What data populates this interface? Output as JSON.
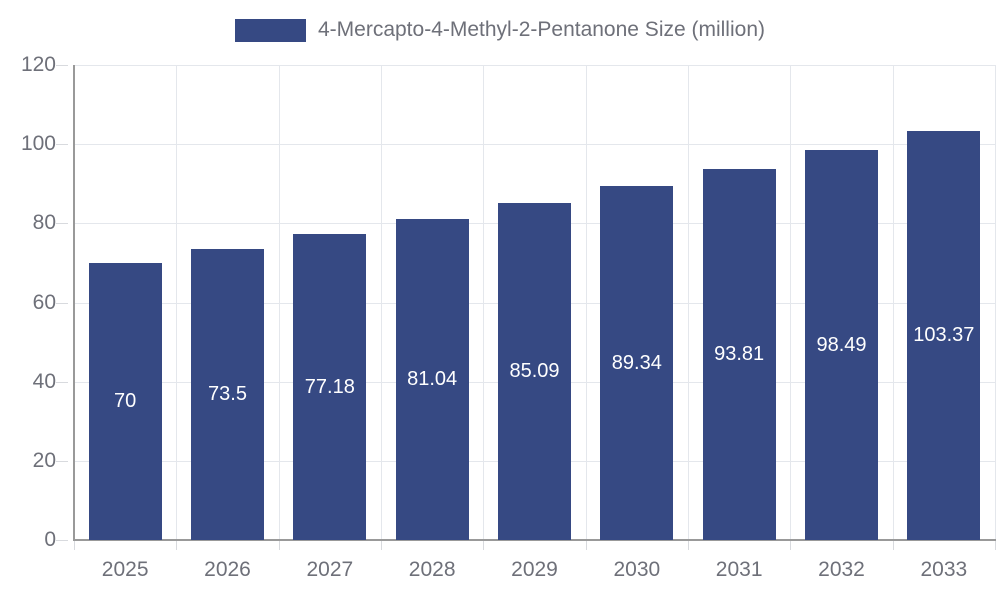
{
  "chart_data": {
    "type": "bar",
    "title": "4-Mercapto-4-Methyl-2-Pentanone Size (million)",
    "legend": [
      "4-Mercapto-4-Methyl-2-Pentanone Size (million)"
    ],
    "legend_position": "top-center",
    "categories": [
      "2025",
      "2026",
      "2027",
      "2028",
      "2029",
      "2030",
      "2031",
      "2032",
      "2033"
    ],
    "series": [
      {
        "name": "4-Mercapto-4-Methyl-2-Pentanone Size (million)",
        "values": [
          70,
          73.5,
          77.18,
          81.04,
          85.09,
          89.34,
          93.81,
          98.49,
          103.37
        ]
      }
    ],
    "value_labels": [
      "70",
      "73.5",
      "77.18",
      "81.04",
      "85.09",
      "89.34",
      "93.81",
      "98.49",
      "103.37"
    ],
    "xlabel": "",
    "ylabel": "",
    "ylim": [
      0,
      120
    ],
    "yticks": [
      0,
      20,
      40,
      60,
      80,
      100,
      120
    ],
    "grid": "on",
    "colors": {
      "bar": "#364983",
      "value_label": "#ffffff",
      "axis_text": "#6e7079",
      "gridline": "#e4e7ec",
      "axis_line": "#999999",
      "tick": "#d8dade",
      "background": "#ffffff"
    }
  }
}
